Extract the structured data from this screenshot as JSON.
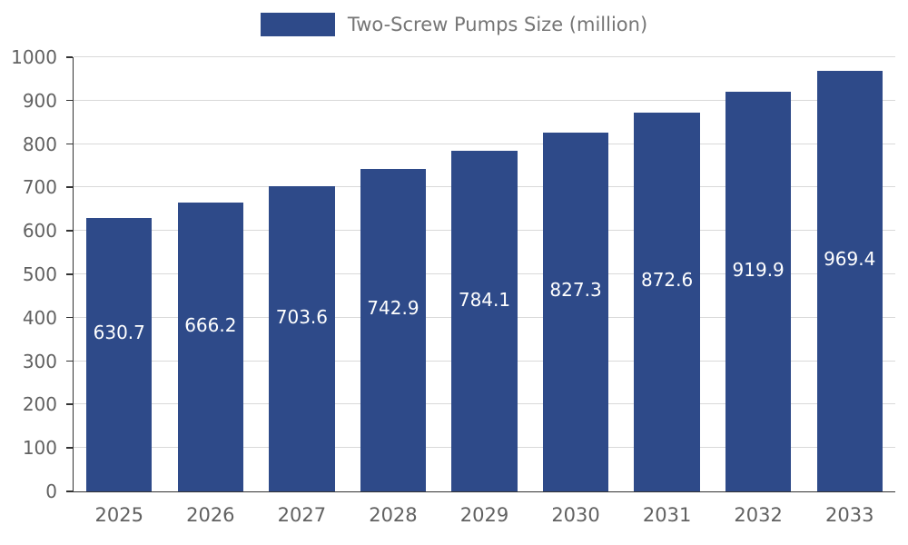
{
  "colors": {
    "bar": "#2e4a89",
    "grid": "#d9d9d9",
    "axis": "#333333",
    "tick_text": "#616161",
    "legend_text": "#757575",
    "bar_label_text": "#ffffff"
  },
  "legend": {
    "label": "Two-Screw Pumps Size (million)"
  },
  "chart_data": {
    "type": "bar",
    "title": "Two-Screw Pumps Size (million)",
    "categories": [
      "2025",
      "2026",
      "2027",
      "2028",
      "2029",
      "2030",
      "2031",
      "2032",
      "2033"
    ],
    "values": [
      630.7,
      666.2,
      703.6,
      742.9,
      784.1,
      827.3,
      872.6,
      919.9,
      969.4
    ],
    "value_labels": [
      "630.7",
      "666.2",
      "703.6",
      "742.9",
      "784.1",
      "827.3",
      "872.6",
      "919.9",
      "969.4"
    ],
    "xlabel": "",
    "ylabel": "",
    "ylim": [
      0,
      1000
    ],
    "yticks": [
      0,
      100,
      200,
      300,
      400,
      500,
      600,
      700,
      800,
      900,
      1000
    ],
    "grid": "horizontal",
    "legend_position": "top-center",
    "bar_label_position": "inside-middle"
  }
}
